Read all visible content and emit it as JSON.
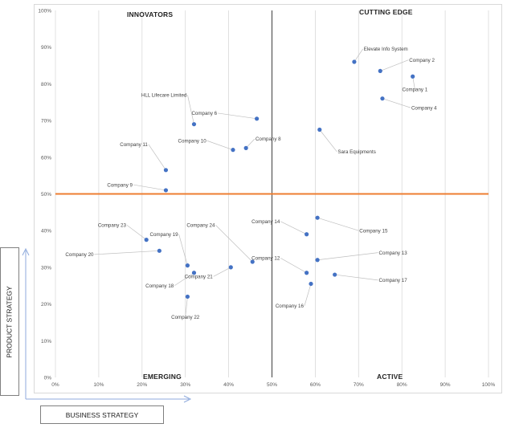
{
  "quadrants": {
    "top_left": "INNOVATORS",
    "top_right": "CUTTING EDGE",
    "bottom_left": "EMERGING",
    "bottom_right": "ACTIVE"
  },
  "axis_titles": {
    "x": "BUSINESS STRATEGY",
    "y": "PRODUCT STRATEGY"
  },
  "colors": {
    "point": "#4472c4",
    "horizontal_divider": "#ed7d31",
    "vertical_divider": "#404040",
    "grid": "#d9d9d9",
    "leader": "#bfbfbf",
    "axis_arrow": "#8faadc"
  },
  "chart_data": {
    "type": "scatter",
    "x_ticks": [
      "0%",
      "10%",
      "20%",
      "30%",
      "40%",
      "50%",
      "60%",
      "70%",
      "80%",
      "90%",
      "100%"
    ],
    "y_ticks": [
      "0%",
      "10%",
      "20%",
      "30%",
      "40%",
      "50%",
      "60%",
      "70%",
      "80%",
      "90%",
      "100%"
    ],
    "xlim": [
      0,
      100
    ],
    "ylim": [
      0,
      100
    ],
    "grid": true,
    "x_divider": 50,
    "y_divider": 50,
    "points": [
      {
        "label": "Elevate Info System",
        "x": 69,
        "y": 86,
        "lx": 71,
        "ly": 89.5
      },
      {
        "label": "Company 2",
        "x": 75,
        "y": 83.5,
        "lx": 81.5,
        "ly": 86.5
      },
      {
        "label": "Company 1",
        "x": 82.5,
        "y": 82,
        "lx": 83,
        "ly": 78.5
      },
      {
        "label": "Company 4",
        "x": 75.5,
        "y": 76,
        "lx": 82,
        "ly": 73.5
      },
      {
        "label": "HLL Lifecare Limited",
        "x": 32,
        "y": 69,
        "lx": 30.5,
        "ly": 77
      },
      {
        "label": "Company 6",
        "x": 46.5,
        "y": 70.5,
        "lx": 37.5,
        "ly": 72
      },
      {
        "label": "Sara Equipments",
        "x": 61,
        "y": 67.5,
        "lx": 65,
        "ly": 61.5
      },
      {
        "label": "Company 10",
        "x": 41,
        "y": 62,
        "lx": 35,
        "ly": 64.5
      },
      {
        "label": "Company 8",
        "x": 44,
        "y": 62.5,
        "lx": 46,
        "ly": 65
      },
      {
        "label": "Company 11",
        "x": 25.5,
        "y": 56.5,
        "lx": 21.5,
        "ly": 63.5
      },
      {
        "label": "Company 9",
        "x": 25.5,
        "y": 51,
        "lx": 18,
        "ly": 52.5
      },
      {
        "label": "Company 23",
        "x": 21,
        "y": 37.5,
        "lx": 16.5,
        "ly": 41.5
      },
      {
        "label": "Company 24",
        "x": 45.5,
        "y": 31.5,
        "lx": 37,
        "ly": 41.5
      },
      {
        "label": "Company 14",
        "x": 58,
        "y": 39,
        "lx": 52,
        "ly": 42.5
      },
      {
        "label": "Company 15",
        "x": 60.5,
        "y": 43.5,
        "lx": 70,
        "ly": 40
      },
      {
        "label": "Company 19",
        "x": 30.5,
        "y": 30.5,
        "lx": 28.5,
        "ly": 39
      },
      {
        "label": "Company 20",
        "x": 24,
        "y": 34.5,
        "lx": 9,
        "ly": 33.5
      },
      {
        "label": "Company 12",
        "x": 58,
        "y": 28.5,
        "lx": 52,
        "ly": 32.5
      },
      {
        "label": "Company 13",
        "x": 60.5,
        "y": 32,
        "lx": 74.5,
        "ly": 34
      },
      {
        "label": "Company 21",
        "x": 40.5,
        "y": 30,
        "lx": 36.5,
        "ly": 27.5
      },
      {
        "label": "Company 18",
        "x": 32,
        "y": 28.5,
        "lx": 27.5,
        "ly": 25
      },
      {
        "label": "Company 17",
        "x": 64.5,
        "y": 28,
        "lx": 74.5,
        "ly": 26.5
      },
      {
        "label": "Company 16",
        "x": 59,
        "y": 25.5,
        "lx": 57.5,
        "ly": 19.5
      },
      {
        "label": "Company 22",
        "x": 30.5,
        "y": 22,
        "lx": 30,
        "ly": 16.5
      }
    ]
  }
}
